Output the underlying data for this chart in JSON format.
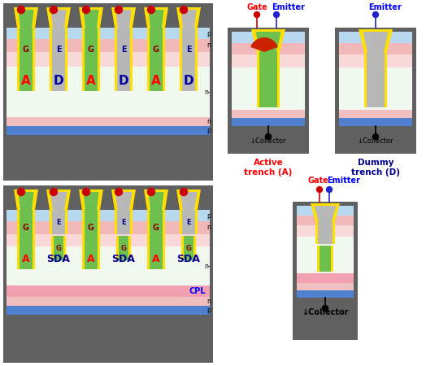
{
  "fig_width": 5.24,
  "fig_height": 4.5,
  "dpi": 100,
  "bg_color": "#ffffff",
  "panel_bg": "#606060",
  "colors": {
    "yellow": "#FFE000",
    "green_active": "#6DC04E",
    "gray_dummy": "#B8B8B8",
    "light_blue_p": "#B8D8F0",
    "pink_n": "#F0B8B8",
    "white_nminus": "#F0F8F0",
    "pink_buf": "#F0C0C0",
    "blue_col": "#5080D0",
    "red_contact": "#CC0000",
    "blue_contact": "#2222CC",
    "dark_outline": "#000000",
    "cpl_pink": "#F0A0B0"
  },
  "trench_labels_top": [
    "A",
    "D",
    "A",
    "D",
    "A",
    "D"
  ],
  "trench_labels_bot": [
    "A",
    "SDA",
    "A",
    "SDA",
    "A",
    "SDA"
  ]
}
